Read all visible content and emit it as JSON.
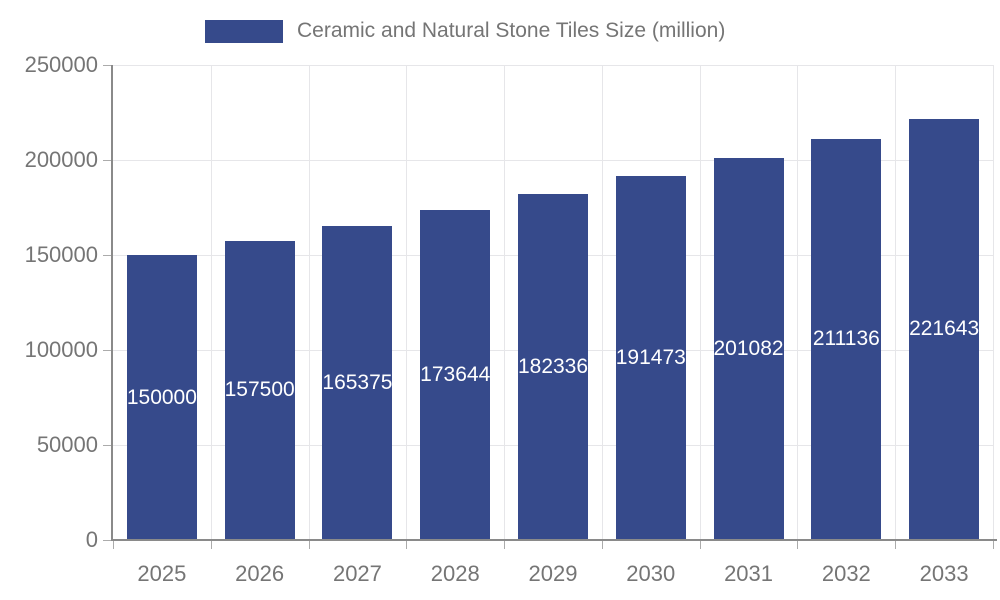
{
  "chart_data": {
    "type": "bar",
    "title": "Ceramic and Natural Stone Tiles Size (million)",
    "legend_position": "top",
    "categories": [
      "2025",
      "2026",
      "2027",
      "2028",
      "2029",
      "2030",
      "2031",
      "2032",
      "2033"
    ],
    "series": [
      {
        "name": "Ceramic and Natural Stone Tiles Size (million)",
        "values": [
          150000,
          157500,
          165375,
          173644,
          182336,
          191473,
          201082,
          211136,
          221643
        ]
      }
    ],
    "data_labels": [
      "150000",
      "157500",
      "165375",
      "173644",
      "182336",
      "191473",
      "201082",
      "211136",
      "221643"
    ],
    "xlabel": "",
    "ylabel": "",
    "ylim": [
      0,
      250000
    ],
    "y_ticks": [
      0,
      50000,
      100000,
      150000,
      200000,
      250000
    ],
    "x_tick_labels": [
      "2025",
      "2026",
      "2027",
      "2028",
      "2029",
      "2030",
      "2031",
      "2032",
      "2033"
    ],
    "grid": true
  },
  "colors": {
    "bar": "#364A8B",
    "axis_text": "#757575",
    "bar_label_text": "#FFFFFF",
    "gridline": "#E6E6E9",
    "axis_line": "#8A8A8A",
    "tick_mark": "#ABABAB",
    "background": "#FFFFFF"
  }
}
